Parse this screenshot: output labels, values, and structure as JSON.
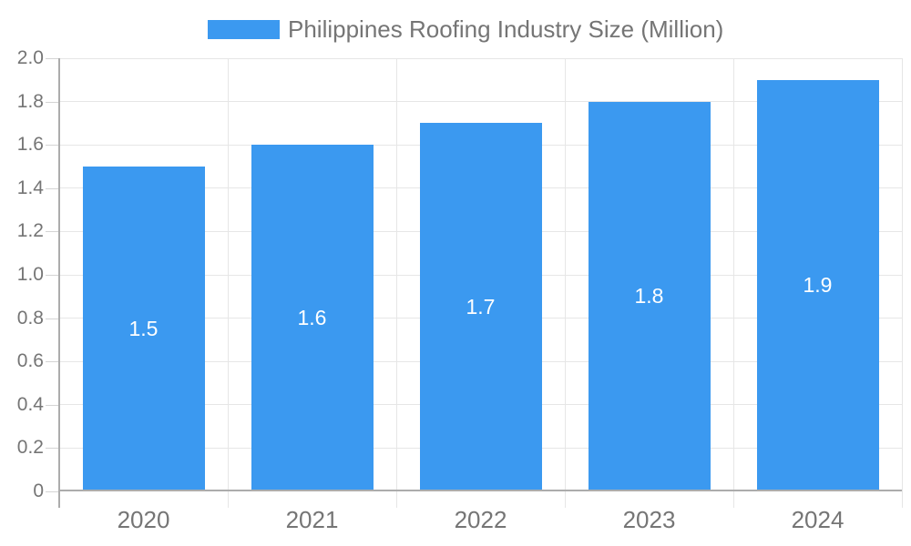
{
  "chart_data": {
    "type": "bar",
    "title": "Philippines Roofing Industry Size (Million)",
    "categories": [
      "2020",
      "2021",
      "2022",
      "2023",
      "2024"
    ],
    "series": [
      {
        "name": "Philippines Roofing Industry Size (Million)",
        "values": [
          1.5,
          1.6,
          1.7,
          1.8,
          1.9
        ]
      }
    ],
    "data_labels": [
      "1.5",
      "1.6",
      "1.7",
      "1.8",
      "1.9"
    ],
    "xlabel": "",
    "ylabel": "",
    "ylim": [
      0,
      2.0
    ],
    "y_ticks": [
      0,
      0.2,
      0.4,
      0.6,
      0.8,
      1.0,
      1.2,
      1.4,
      1.6,
      1.8,
      2.0
    ],
    "y_tick_labels": [
      "0",
      "0.2",
      "0.4",
      "0.6",
      "0.8",
      "1.0",
      "1.2",
      "1.4",
      "1.6",
      "1.8",
      "2.0"
    ],
    "grid": true,
    "legend_position": "top"
  },
  "legend": {
    "label": "Philippines Roofing Industry Size (Million)"
  },
  "colors": {
    "bar": "#3B99F0",
    "grid": "#E6E6E6",
    "axis": "#ACACAC",
    "tick": "#D4D4D4",
    "text": "#757575",
    "data_label": "#FFFFFF",
    "background": "#FFFFFF"
  }
}
